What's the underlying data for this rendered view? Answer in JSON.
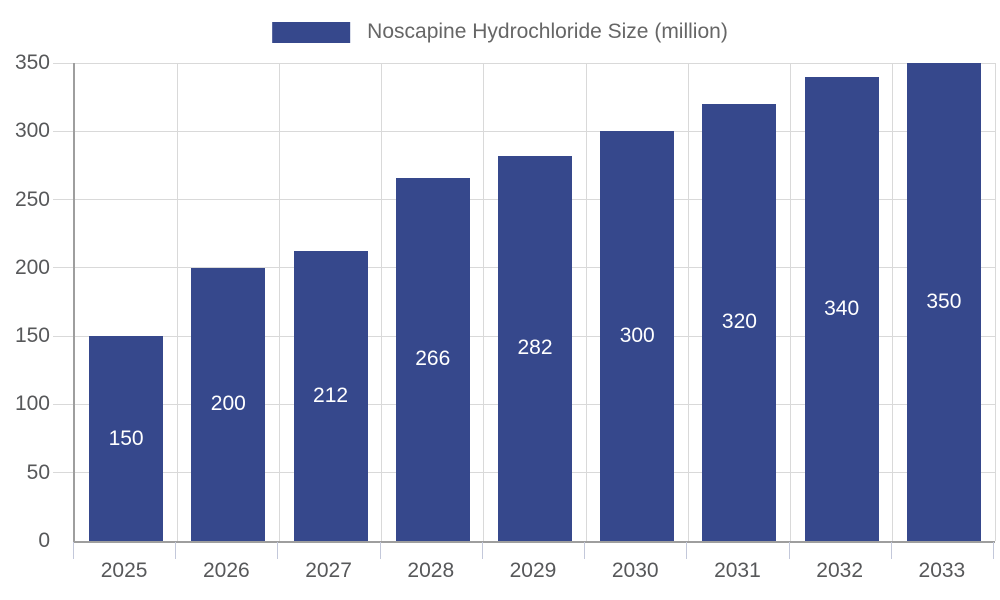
{
  "legend": {
    "label": "Noscapine Hydrochloride Size (million)"
  },
  "chart_data": {
    "type": "bar",
    "title": "Noscapine Hydrochloride Size (million)",
    "series_name": "Noscapine Hydrochloride Size (million)",
    "categories": [
      "2025",
      "2026",
      "2027",
      "2028",
      "2029",
      "2030",
      "2031",
      "2032",
      "2033"
    ],
    "values": [
      150,
      200,
      212,
      266,
      282,
      300,
      320,
      340,
      350
    ],
    "xlabel": "",
    "ylabel": "",
    "ylim": [
      0,
      350
    ],
    "y_ticks": [
      0,
      50,
      100,
      150,
      200,
      250,
      300,
      350
    ],
    "grid": "on",
    "legend_position": "top",
    "value_labels": "inside-center"
  },
  "colors": {
    "bar": "#36488c",
    "value_label": "#ffffff",
    "grid": "#d9d9d9",
    "axis": "#9e9e9e",
    "tick_label": "#57585a",
    "legend_text": "#666666",
    "x_tick": "#c3c8da",
    "background": "#ffffff"
  }
}
